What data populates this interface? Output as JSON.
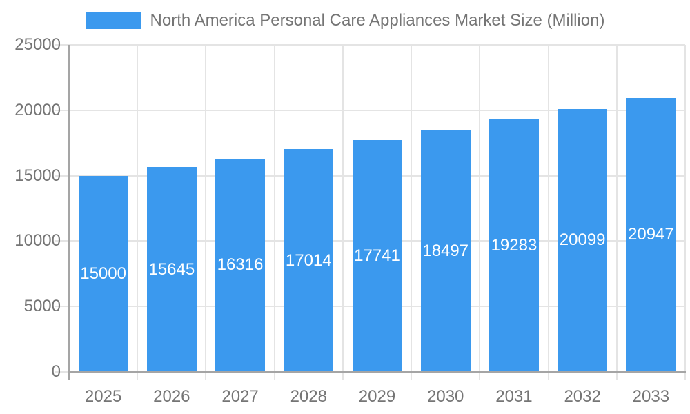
{
  "legend": {
    "label": "North America Personal Care Appliances Market Size (Million)"
  },
  "colors": {
    "bar": "#3B99EE",
    "grid": "#e4e4e4",
    "axis_line": "#a5a5a5",
    "text": "#757575",
    "value_text": "#ffffff",
    "background": "#ffffff"
  },
  "chart_data": {
    "type": "bar",
    "title": "North America Personal Care Appliances Market Size (Million)",
    "series_name": "North America Personal Care Appliances Market Size (Million)",
    "categories": [
      "2025",
      "2026",
      "2027",
      "2028",
      "2029",
      "2030",
      "2031",
      "2032",
      "2033"
    ],
    "values": [
      15000,
      15645,
      16316,
      17014,
      17741,
      18497,
      19283,
      20099,
      20947
    ],
    "xlabel": "",
    "ylabel": "",
    "ylim": [
      0,
      25000
    ],
    "ytick_step": 5000,
    "ytick_labels": [
      "0",
      "5000",
      "10000",
      "15000",
      "20000",
      "25000"
    ],
    "grid": true,
    "legend_position": "top",
    "value_label_position": "inside-center"
  }
}
